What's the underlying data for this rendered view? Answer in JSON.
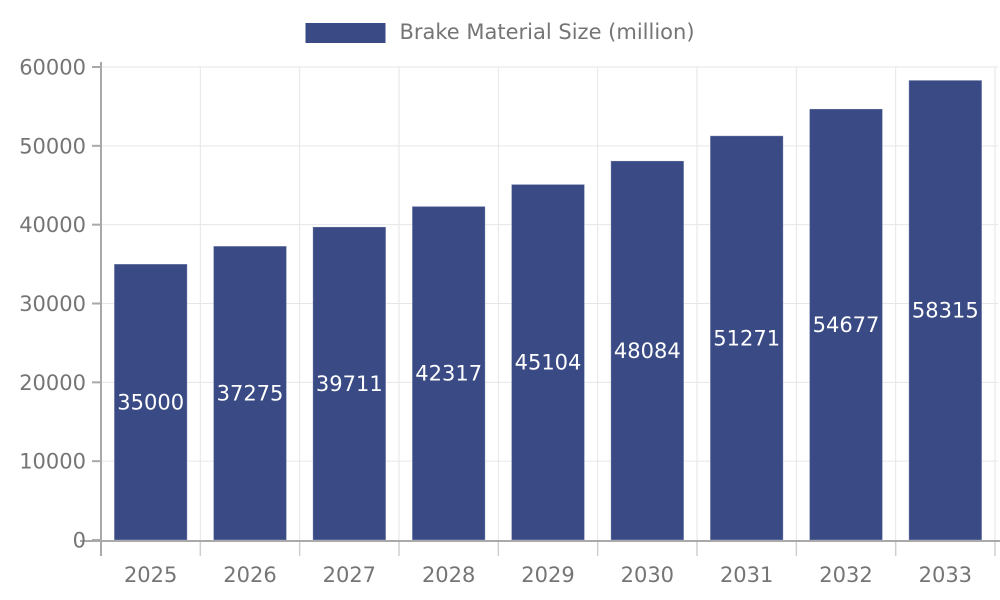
{
  "chart_data": {
    "type": "bar",
    "title": "",
    "series_name": "Brake Material Size (million)",
    "categories": [
      "2025",
      "2026",
      "2027",
      "2028",
      "2029",
      "2030",
      "2031",
      "2032",
      "2033"
    ],
    "values": [
      35000,
      37275,
      39711,
      42317,
      45104,
      48084,
      51271,
      54677,
      58315
    ],
    "xlabel": "",
    "ylabel": "",
    "ylim": [
      0,
      60000
    ],
    "yticks": [
      0,
      10000,
      20000,
      30000,
      40000,
      50000,
      60000
    ],
    "grid": true,
    "legend_position": "top-center",
    "bar_value_labels_inside": true,
    "colors": {
      "bar": "#394A85",
      "bar_value_text": "#FFFFFF",
      "axis_text": "#757575",
      "legend_text": "#757575",
      "gridline": "#E6E6E6",
      "axis_line": "#A9A9A9",
      "boundary_tick": "#CFCFCF"
    }
  }
}
